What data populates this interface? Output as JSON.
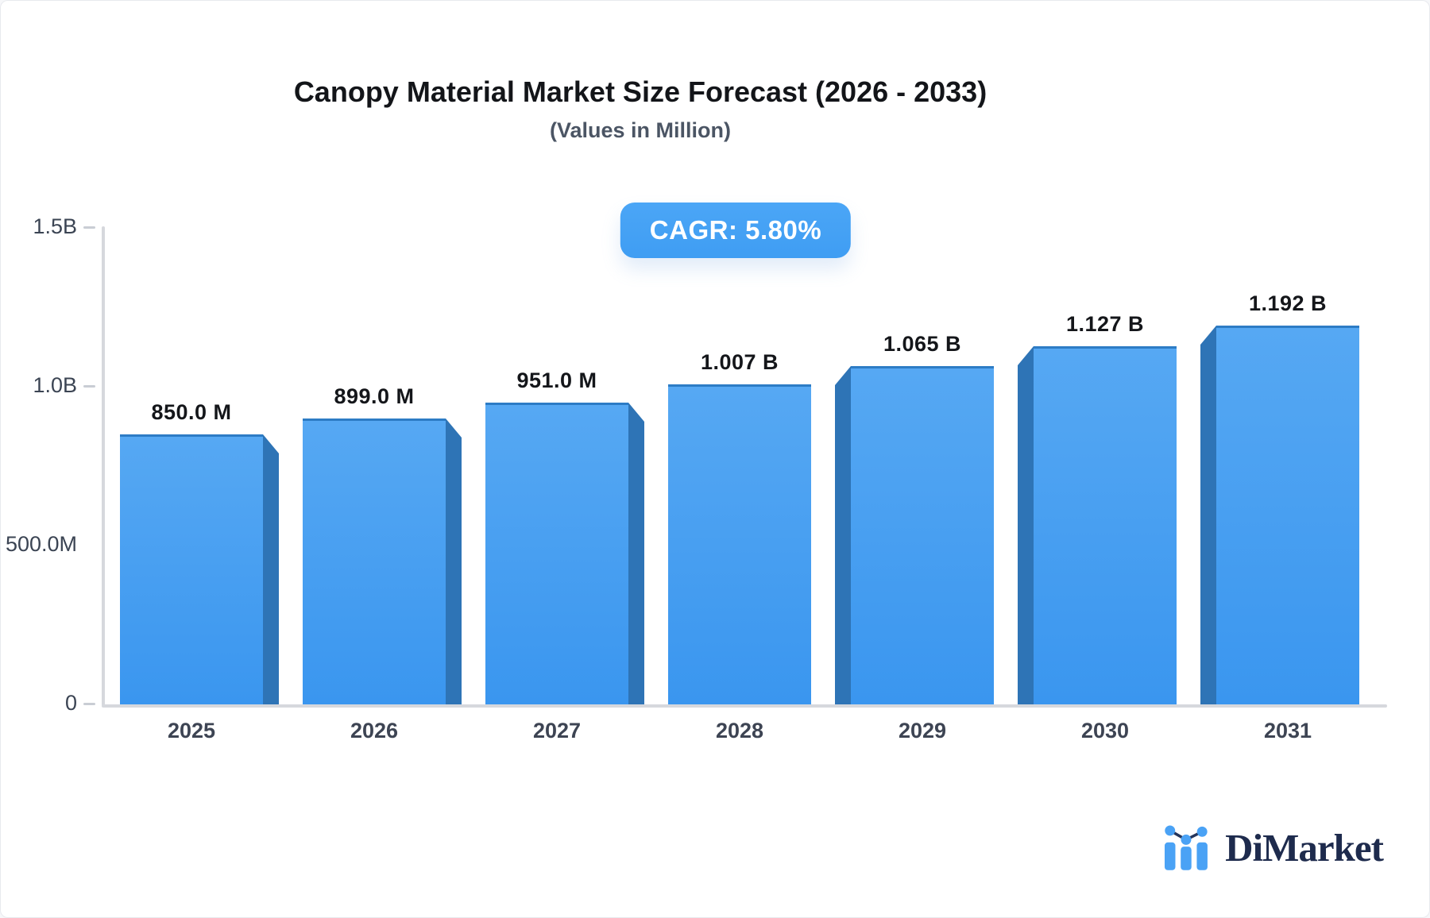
{
  "chart_data": {
    "type": "bar",
    "title": "Canopy Material Market Size Forecast (2026 - 2033)",
    "subtitle": "(Values in Million)",
    "cagr_label": "CAGR: 5.80%",
    "categories": [
      "2025",
      "2026",
      "2027",
      "2028",
      "2029",
      "2030",
      "2031"
    ],
    "values_in_millions": [
      850,
      899,
      951,
      1007,
      1065,
      1127,
      1192
    ],
    "value_labels": [
      "850.0 M",
      "899.0 M",
      "951.0 M",
      "1.007 B",
      "1.065 B",
      "1.127 B",
      "1.192 B"
    ],
    "y_axis": {
      "ylim_millions": [
        0,
        1500
      ],
      "ticks": [
        {
          "label": "1.5B",
          "value_millions": 1500,
          "has_dash": true
        },
        {
          "label": "1.0B",
          "value_millions": 1000,
          "has_dash": true
        },
        {
          "label": "500.0M",
          "value_millions": 500,
          "has_dash": false
        },
        {
          "label": "0",
          "value_millions": 0,
          "has_dash": true
        }
      ]
    },
    "grid": false,
    "legend": false,
    "colors": {
      "bar_face_top": "#56a8f3",
      "bar_face_bottom": "#3a96ef",
      "bar_side": "#2e74b6",
      "bar_top_border": "#2d7cc5",
      "badge_top": "#4ba6f6",
      "badge_bottom": "#3f9df3",
      "axis_line": "#d6d8dd"
    }
  },
  "branding": {
    "name": "DiMarket",
    "icon": "mini-bar-chart-with-dots-icon",
    "navy": "#1e2b4d",
    "blue": "#4aa2f5"
  }
}
